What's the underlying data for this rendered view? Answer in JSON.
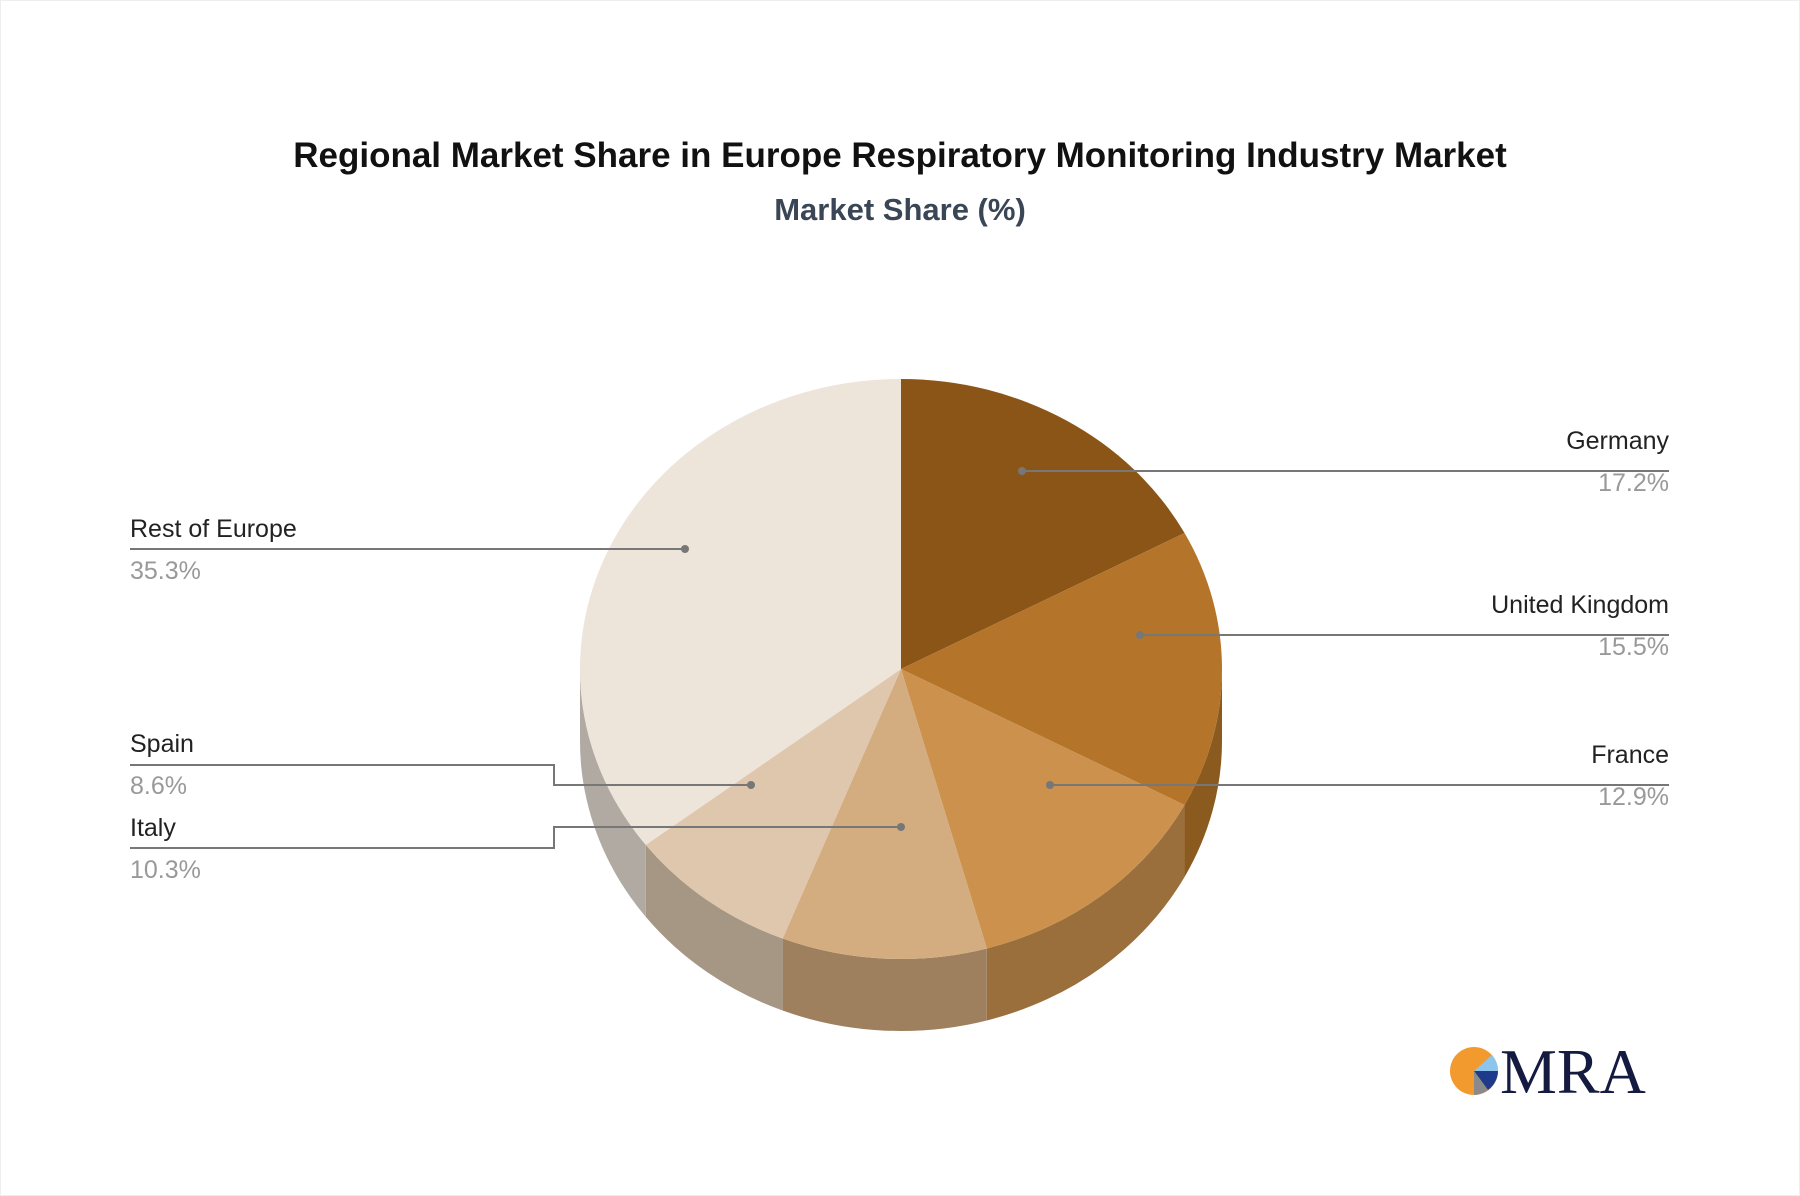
{
  "chart_data": {
    "type": "pie",
    "title": "Regional Market Share in Europe Respiratory Monitoring Industry Market",
    "subtitle": "Market Share (%)",
    "style": "3d",
    "slices": [
      {
        "label": "Germany",
        "value": 17.2,
        "value_label": "17.2%",
        "color": "#8b5518",
        "side_color": "#8b5a1e"
      },
      {
        "label": "United Kingdom",
        "value": 15.5,
        "value_label": "15.5%",
        "color": "#b4752a",
        "side_color": "#8b5a1e"
      },
      {
        "label": "France",
        "value": 12.9,
        "value_label": "12.9%",
        "color": "#cc914d",
        "side_color": "#9a6f3c"
      },
      {
        "label": "Italy",
        "value": 10.3,
        "value_label": "10.3%",
        "color": "#d3ad80",
        "side_color": "#9e805f"
      },
      {
        "label": "Spain",
        "value": 8.6,
        "value_label": "8.6%",
        "color": "#dfc7ad",
        "side_color": "#a69784"
      },
      {
        "label": "Rest of Europe",
        "value": 35.3,
        "value_label": "35.3%",
        "color": "#ede4da",
        "side_color": "#b1aaa3"
      }
    ]
  },
  "logo": {
    "text": "MRA"
  }
}
